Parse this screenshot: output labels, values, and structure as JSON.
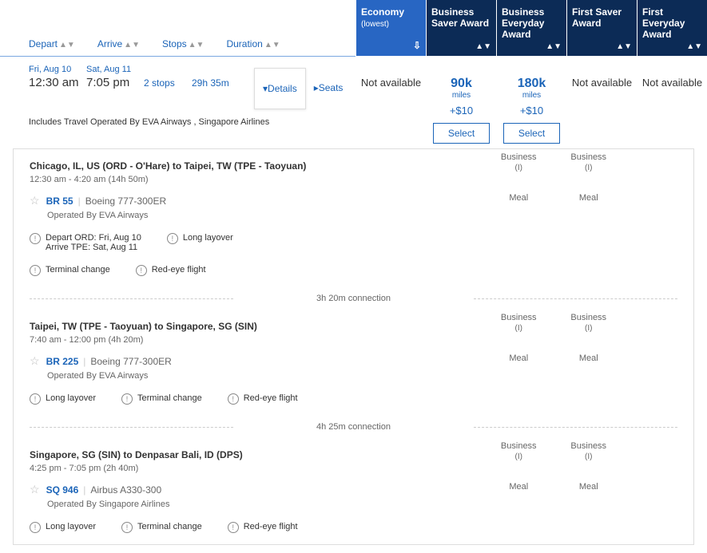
{
  "headers": {
    "depart": "Depart",
    "arrive": "Arrive",
    "stops": "Stops",
    "duration": "Duration"
  },
  "fare_columns": [
    {
      "name": "Economy",
      "sub": "(lowest)",
      "class": "blue",
      "type": "dl"
    },
    {
      "name": "Business Saver Award",
      "sub": "",
      "class": "navy",
      "type": "sort"
    },
    {
      "name": "Business Everyday Award",
      "sub": "",
      "class": "navy",
      "type": "sort"
    },
    {
      "name": "First Saver Award",
      "sub": "",
      "class": "navy",
      "type": "sort"
    },
    {
      "name": "First Everyday Award",
      "sub": "",
      "class": "navy",
      "type": "sort"
    }
  ],
  "flight": {
    "depart_date": "Fri, Aug 10",
    "depart_time": "12:30 am",
    "arrive_date": "Sat, Aug 11",
    "arrive_time": "7:05 pm",
    "stops": "2 stops",
    "duration": "29h 35m",
    "details": "Details",
    "seats": "Seats",
    "includes": "Includes Travel Operated By EVA Airways , Singapore Airlines"
  },
  "fares": {
    "na": "Not available",
    "saver_miles": "90k",
    "everyday_miles": "180k",
    "miles_label": "miles",
    "plus": "+$10",
    "select": "Select"
  },
  "segments": [
    {
      "route": "Chicago, IL, US (ORD - O'Hare) to Taipei, TW (TPE - Taoyuan)",
      "times": "12:30 am - 4:20 am (14h 50m)",
      "flight_num": "BR 55",
      "aircraft": "Boeing 777-300ER",
      "operated": "Operated By EVA Airways",
      "warnings_a": [
        {
          "text": "Depart ORD: Fri, Aug 10\nArrive TPE: Sat, Aug 11"
        },
        {
          "text": "Long layover"
        }
      ],
      "warnings_b": [
        {
          "text": "Terminal change"
        },
        {
          "text": "Red-eye flight"
        }
      ],
      "class": "Business",
      "code": "(I)",
      "meal": "Meal",
      "connection": "3h 20m connection"
    },
    {
      "route": "Taipei, TW (TPE - Taoyuan) to Singapore, SG (SIN)",
      "times": "7:40 am - 12:00 pm (4h 20m)",
      "flight_num": "BR 225",
      "aircraft": "Boeing 777-300ER",
      "operated": "Operated By EVA Airways",
      "warnings_a": [
        {
          "text": "Long layover"
        },
        {
          "text": "Terminal change"
        },
        {
          "text": "Red-eye flight"
        }
      ],
      "warnings_b": [],
      "class": "Business",
      "code": "(I)",
      "meal": "Meal",
      "connection": "4h 25m connection"
    },
    {
      "route": "Singapore, SG (SIN) to Denpasar Bali, ID (DPS)",
      "times": "4:25 pm - 7:05 pm (2h 40m)",
      "flight_num": "SQ 946",
      "aircraft": "Airbus A330-300",
      "operated": "Operated By Singapore Airlines",
      "warnings_a": [
        {
          "text": "Long layover"
        },
        {
          "text": "Terminal change"
        },
        {
          "text": "Red-eye flight"
        }
      ],
      "warnings_b": [],
      "class": "Business",
      "code": "(I)",
      "meal": "Meal",
      "connection": ""
    }
  ]
}
